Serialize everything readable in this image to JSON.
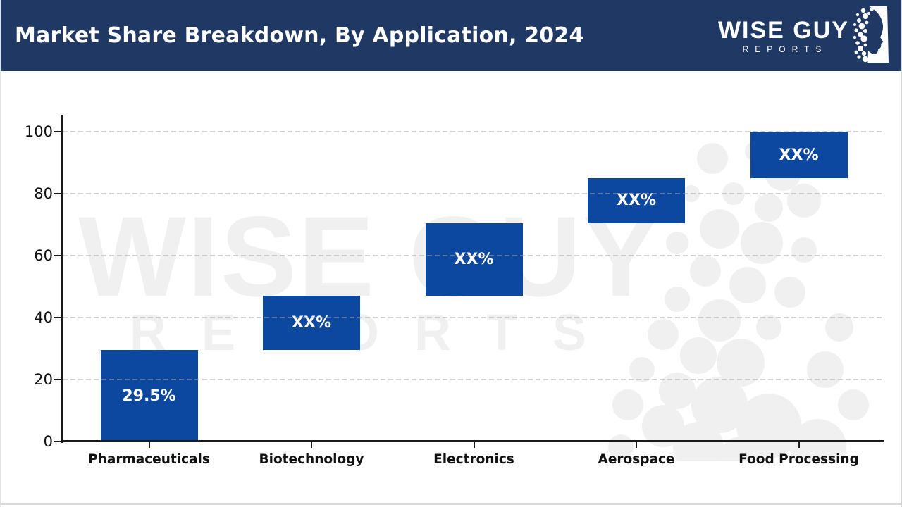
{
  "header": {
    "title": "Market Share Breakdown, By Application, 2024"
  },
  "logo": {
    "line1": "WISE GUY",
    "line2": "REPORTS",
    "head_icon": "dotted-head-profile"
  },
  "watermark": {
    "line1": "WISE GUY",
    "line2": "REPORTS",
    "head_icon": "dotted-head-profile"
  },
  "chart_data": {
    "type": "bar",
    "subtype": "floating-segment-waterfall",
    "title": "Market Share Breakdown, By Application, 2024",
    "xlabel": "",
    "ylabel": "",
    "categories": [
      "Pharmaceuticals",
      "Biotechnology",
      "Electronics",
      "Aerospace",
      "Food Processing"
    ],
    "series": [
      {
        "name": "Market Share (%)",
        "segments": [
          {
            "category": "Pharmaceuticals",
            "start": 0,
            "end": 29.5,
            "label": "29.5%"
          },
          {
            "category": "Biotechnology",
            "start": 29.5,
            "end": 47,
            "label": "XX%"
          },
          {
            "category": "Electronics",
            "start": 47,
            "end": 70.5,
            "label": "XX%"
          },
          {
            "category": "Aerospace",
            "start": 70.5,
            "end": 85,
            "label": "XX%"
          },
          {
            "category": "Food Processing",
            "start": 85,
            "end": 100,
            "label": "XX%"
          }
        ]
      }
    ],
    "ylim": [
      0,
      105
    ],
    "yticks": [
      0,
      20,
      40,
      60,
      80,
      100
    ],
    "grid": "horizontal dashed gridlines at y ticks, drawn over bars",
    "legend": "none"
  },
  "colors": {
    "header_bg": "#1f3864",
    "bar": "#0c47a0",
    "bar_label": "#ffffff",
    "axis": "#1a1a1a",
    "grid": "#a5a5a5",
    "watermark": "#f0f0f0",
    "bottom_rule": "#d9d9d9"
  }
}
